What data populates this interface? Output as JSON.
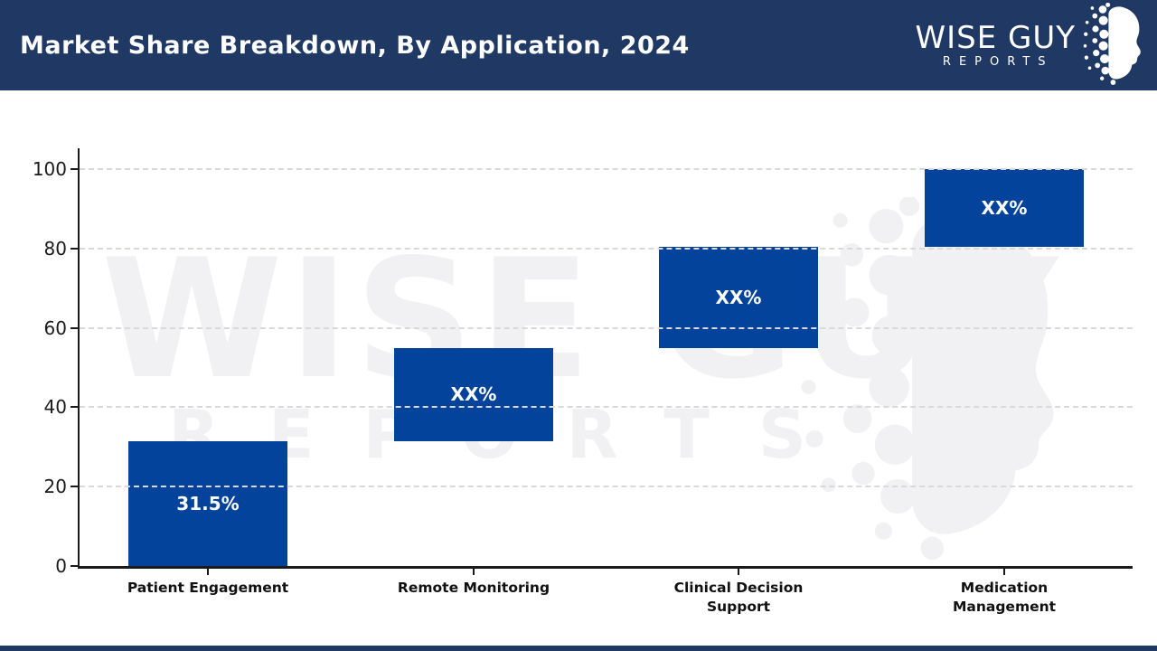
{
  "header": {
    "title": "Market Share Breakdown, By Application, 2024",
    "brand_name": "WISE GUY",
    "brand_sub": "REPORTS"
  },
  "watermark": {
    "line1": "WISE GUY",
    "line2": "REPORTS"
  },
  "colors": {
    "header_bg": "#1F3864",
    "footer_bg": "#1F3864",
    "bar": "#04439C",
    "grid": "#D9D9D9",
    "axis": "#1A1A1A",
    "bar_label_text": "#FFFFFF",
    "watermark": "#F1F1F3"
  },
  "chart_data": {
    "type": "bar",
    "subtype": "waterfall",
    "title": "Market Share Breakdown, By Application, 2024",
    "categories": [
      "Patient Engagement",
      "Remote Monitoring",
      "Clinical Decision\nSupport",
      "Medication\nManagement"
    ],
    "segments": [
      {
        "category": "Patient Engagement",
        "start": 0,
        "end": 31.5,
        "label": "31.5%"
      },
      {
        "category": "Remote Monitoring",
        "start": 31.5,
        "end": 55,
        "label": "XX%"
      },
      {
        "category": "Clinical Decision Support",
        "start": 55,
        "end": 80.5,
        "label": "XX%"
      },
      {
        "category": "Medication Management",
        "start": 80.5,
        "end": 100,
        "label": "XX%"
      }
    ],
    "yticks": [
      0,
      20,
      40,
      60,
      80,
      100
    ],
    "ylim": [
      0,
      100
    ],
    "xlabel": "",
    "ylabel": "",
    "legend": "none",
    "grid": "horizontal dashed, drawn above bars"
  }
}
